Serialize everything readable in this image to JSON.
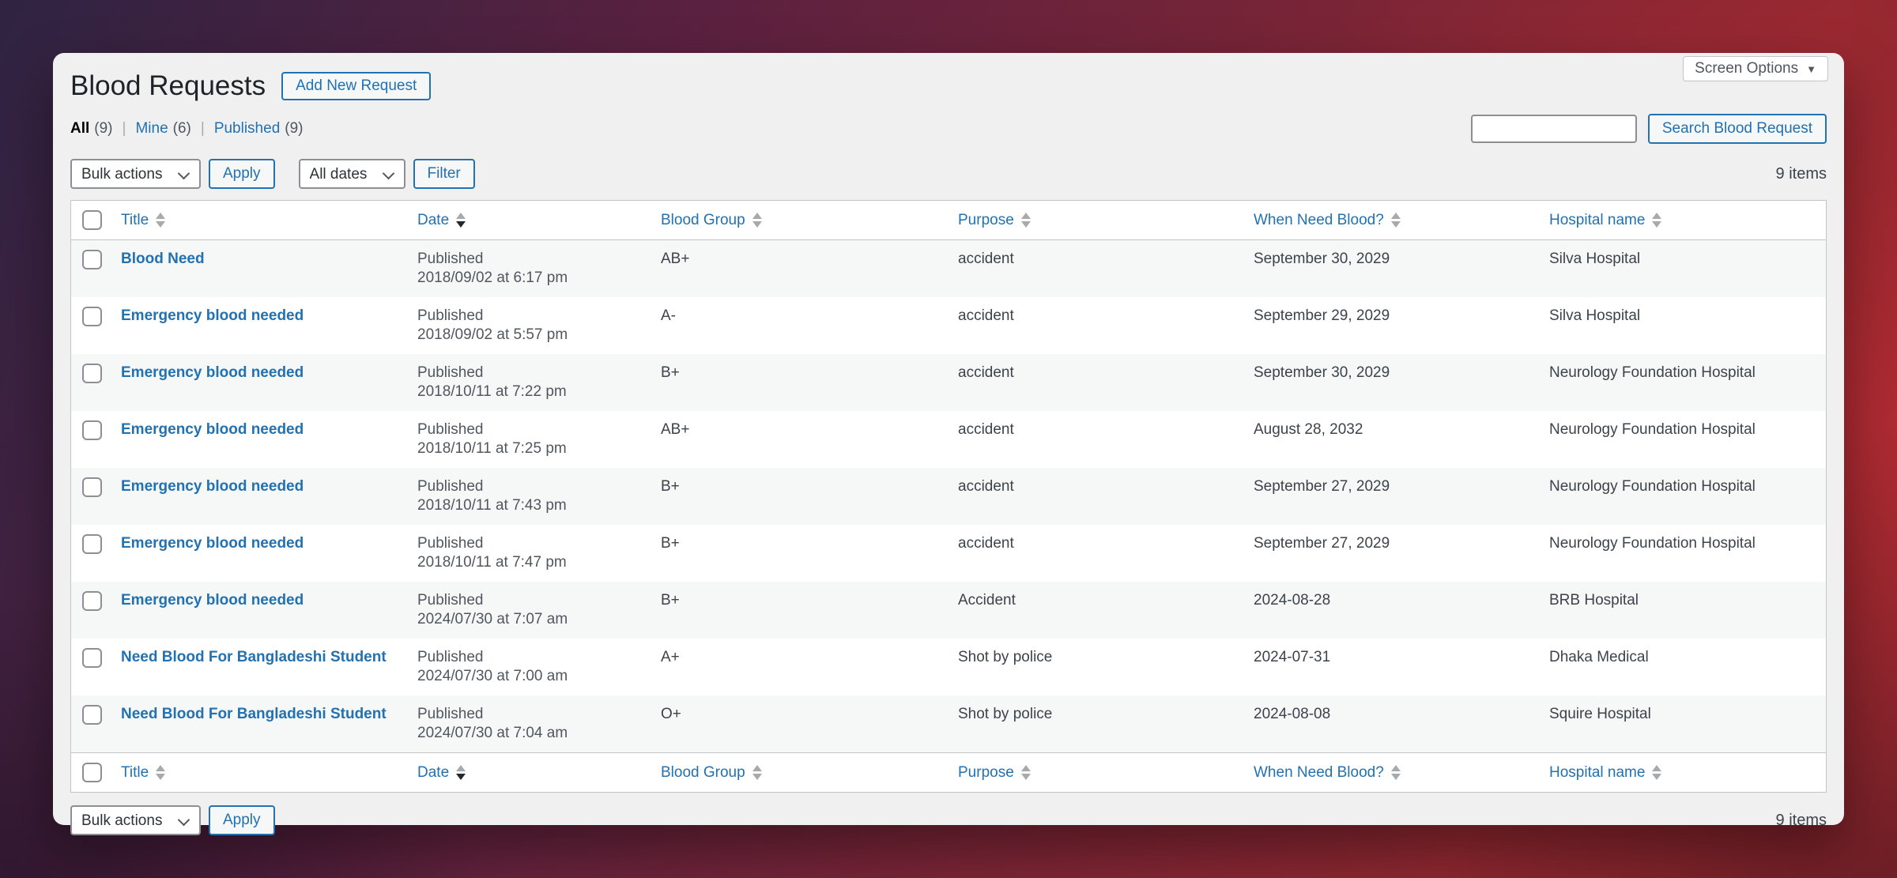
{
  "page": {
    "title": "Blood Requests",
    "add_new_label": "Add New Request",
    "screen_options_label": "Screen Options",
    "items_count": "9 items"
  },
  "views": [
    {
      "label": "All",
      "count": "(9)",
      "current": true
    },
    {
      "label": "Mine",
      "count": "(6)",
      "current": false
    },
    {
      "label": "Published",
      "count": "(9)",
      "current": false
    }
  ],
  "search": {
    "value": "",
    "button_label": "Search Blood Request"
  },
  "toolbar": {
    "bulk_actions_label": "Bulk actions",
    "apply_label": "Apply",
    "dates_filter_label": "All dates",
    "filter_label": "Filter"
  },
  "table": {
    "columns": [
      "Title",
      "Date",
      "Blood Group",
      "Purpose",
      "When Need Blood?",
      "Hospital name"
    ],
    "sorted_column": "Date",
    "sort_direction": "desc",
    "rows": [
      {
        "title": "Blood Need",
        "status": "Published",
        "date": "2018/09/02 at 6:17 pm",
        "blood_group": "AB+",
        "purpose": "accident",
        "when": "September 30, 2029",
        "hospital": "Silva Hospital"
      },
      {
        "title": "Emergency blood needed",
        "status": "Published",
        "date": "2018/09/02 at 5:57 pm",
        "blood_group": "A-",
        "purpose": "accident",
        "when": "September 29, 2029",
        "hospital": "Silva Hospital"
      },
      {
        "title": "Emergency blood needed",
        "status": "Published",
        "date": "2018/10/11 at 7:22 pm",
        "blood_group": "B+",
        "purpose": "accident",
        "when": "September 30, 2029",
        "hospital": "Neurology Foundation Hospital"
      },
      {
        "title": "Emergency blood needed",
        "status": "Published",
        "date": "2018/10/11 at 7:25 pm",
        "blood_group": "AB+",
        "purpose": "accident",
        "when": "August 28, 2032",
        "hospital": "Neurology Foundation Hospital"
      },
      {
        "title": "Emergency blood needed",
        "status": "Published",
        "date": "2018/10/11 at 7:43 pm",
        "blood_group": "B+",
        "purpose": "accident",
        "when": "September 27, 2029",
        "hospital": "Neurology Foundation Hospital"
      },
      {
        "title": "Emergency blood needed",
        "status": "Published",
        "date": "2018/10/11 at 7:47 pm",
        "blood_group": "B+",
        "purpose": "accident",
        "when": "September 27, 2029",
        "hospital": "Neurology Foundation Hospital"
      },
      {
        "title": "Emergency blood needed",
        "status": "Published",
        "date": "2024/07/30 at 7:07 am",
        "blood_group": "B+",
        "purpose": "Accident",
        "when": "2024-08-28",
        "hospital": "BRB Hospital"
      },
      {
        "title": "Need Blood For Bangladeshi Student",
        "status": "Published",
        "date": "2024/07/30 at 7:00 am",
        "blood_group": "A+",
        "purpose": "Shot by police",
        "when": "2024-07-31",
        "hospital": "Dhaka Medical"
      },
      {
        "title": "Need Blood For Bangladeshi Student",
        "status": "Published",
        "date": "2024/07/30 at 7:04 am",
        "blood_group": "O+",
        "purpose": "Shot by police",
        "when": "2024-08-08",
        "hospital": "Squire Hospital"
      }
    ]
  },
  "colors": {
    "accent": "#2271b1",
    "panel_bg": "#f0f0f1",
    "stripe": "#f6f7f7",
    "border": "#c3c4c7",
    "text_dark": "#1d2327",
    "text_meta": "#50575e"
  }
}
